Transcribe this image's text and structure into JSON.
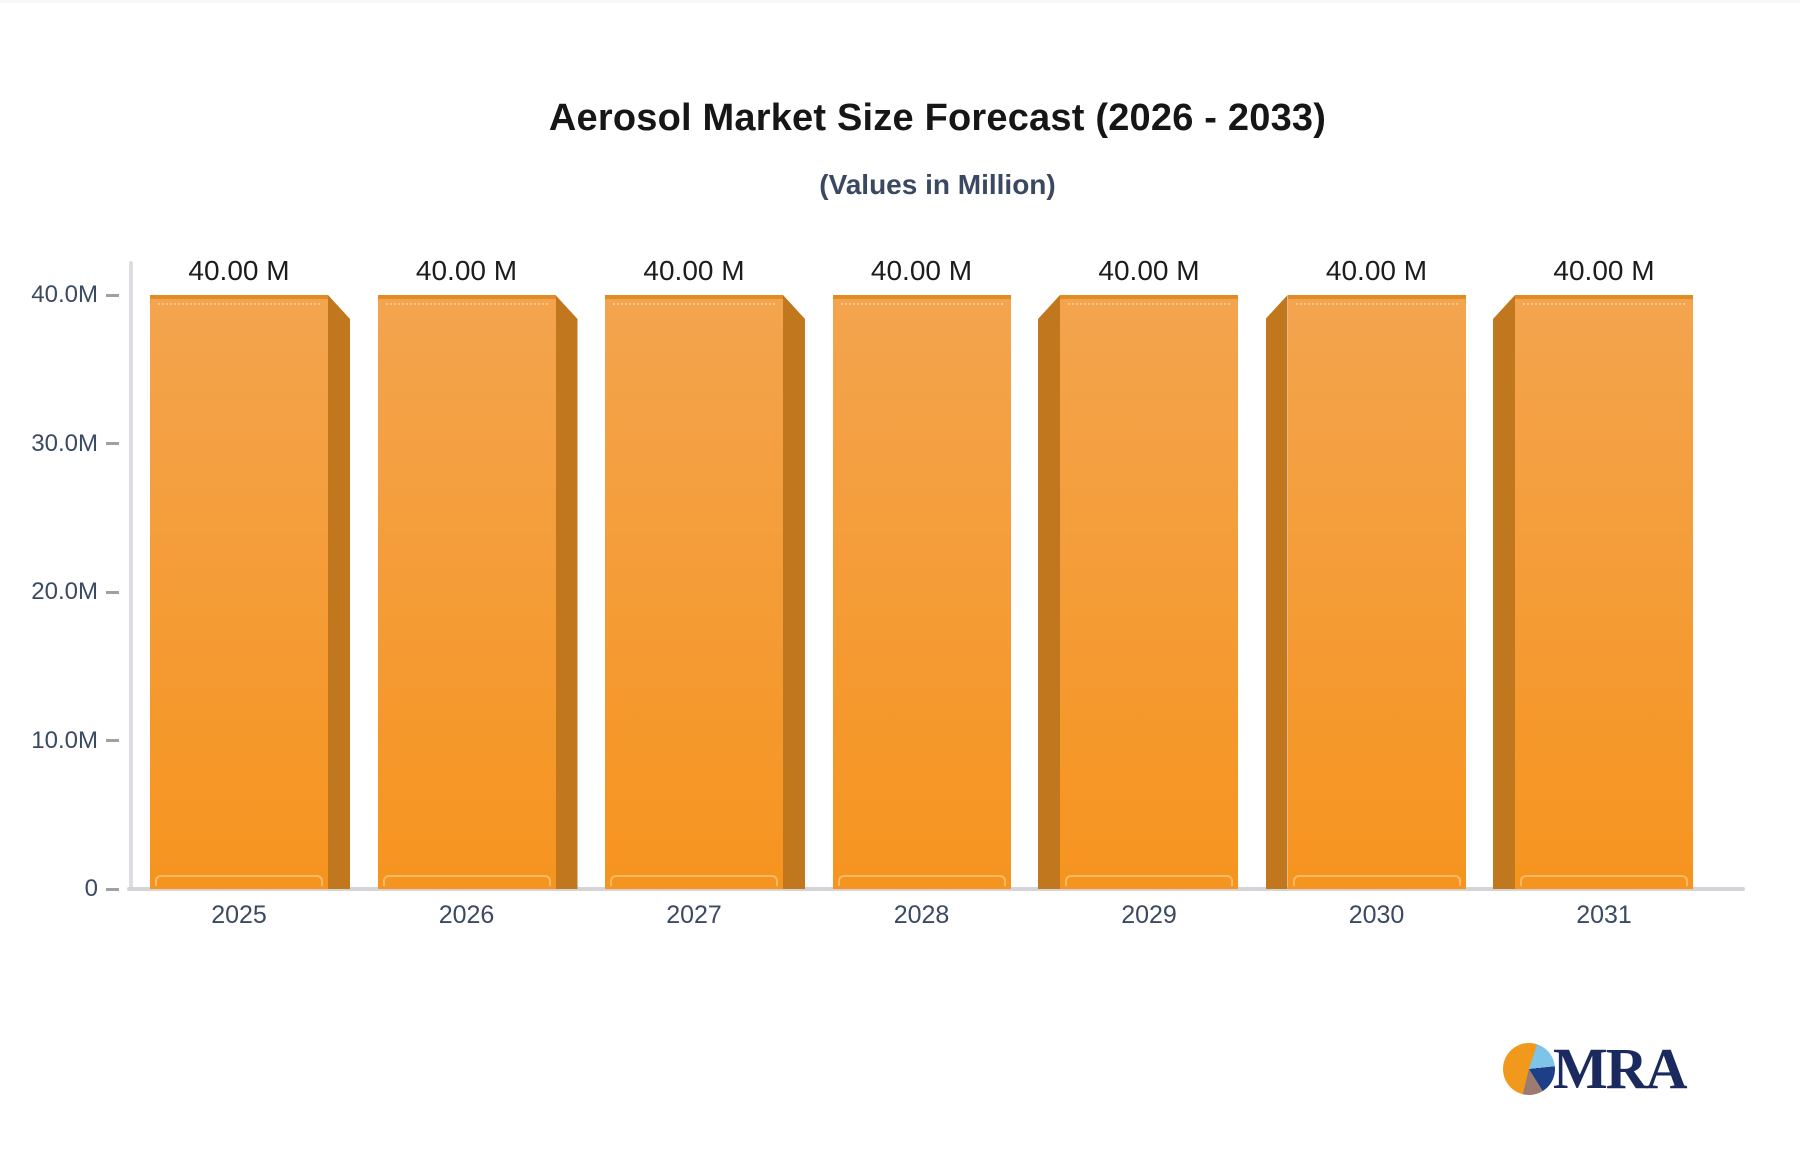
{
  "header": {
    "title": "Aerosol Market Size Forecast (2026 - 2033)",
    "subtitle": "(Values in Million)"
  },
  "chart_data": {
    "type": "bar",
    "title": "Aerosol Market Size Forecast (2026 - 2033)",
    "subtitle": "(Values in Million)",
    "unit": "Million",
    "categories": [
      "2025",
      "2026",
      "2027",
      "2028",
      "2029",
      "2030",
      "2031"
    ],
    "values": [
      40,
      40,
      40,
      40,
      40,
      40,
      40
    ],
    "value_labels": [
      "40.00 M",
      "40.00 M",
      "40.00 M",
      "40.00 M",
      "40.00 M",
      "40.00 M",
      "40.00 M"
    ],
    "ylim": [
      0,
      40
    ],
    "yticks": [
      {
        "value": 0,
        "label": "0"
      },
      {
        "value": 10,
        "label": "10.0M"
      },
      {
        "value": 20,
        "label": "20.0M"
      },
      {
        "value": 30,
        "label": "30.0M"
      },
      {
        "value": 40,
        "label": "40.0M"
      }
    ],
    "grid": "off",
    "legend": "none",
    "bar_style": {
      "face_top": "#F3A44E",
      "face_bottom": "#F6941F",
      "side": "#C1771E",
      "top_edge": "#E28B21"
    }
  },
  "logo": {
    "text": "MRA",
    "colors": {
      "text": "#1B2A5E",
      "pie_orange": "#F0991D",
      "pie_lightblue": "#7EC4E9",
      "pie_navy": "#1E3F86",
      "pie_mauve": "#9C7B71"
    }
  }
}
